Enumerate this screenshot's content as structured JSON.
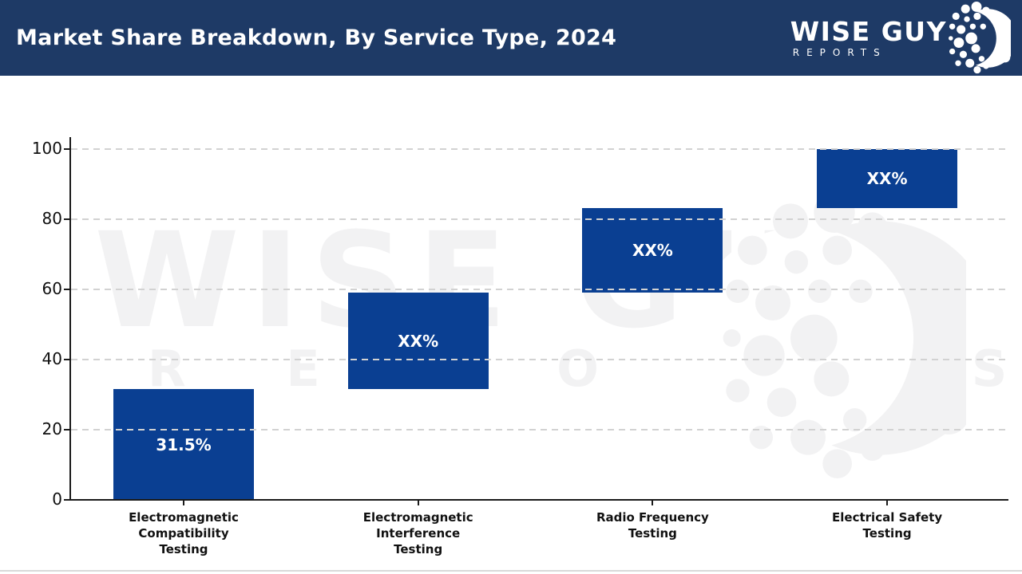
{
  "header": {
    "title": "Market Share Breakdown, By Service Type, 2024",
    "bg_color": "#1E3A66",
    "logo": {
      "wordmark": "WISE GUY",
      "subtitle": "REPORTS"
    }
  },
  "watermark": {
    "wordmark": "WISE GU",
    "subtitle": "R E P O R T S"
  },
  "chart_data": {
    "type": "bar",
    "variant": "waterfall",
    "title": "Market Share Breakdown, By Service Type, 2024",
    "categories": [
      "Electromagnetic Compatibility Testing",
      "Electromagnetic Interference Testing",
      "Radio Frequency Testing",
      "Electrical Safety Testing"
    ],
    "category_lines": [
      [
        "Electromagnetic",
        "Compatibility",
        "Testing"
      ],
      [
        "Electromagnetic",
        "Interference",
        "Testing"
      ],
      [
        "Radio Frequency",
        "Testing"
      ],
      [
        "Electrical Safety",
        "Testing"
      ]
    ],
    "segments": [
      {
        "start": 0,
        "end": 31.5,
        "label": "31.5%"
      },
      {
        "start": 31.5,
        "end": 59,
        "label": "XX%"
      },
      {
        "start": 59,
        "end": 83,
        "label": "XX%"
      },
      {
        "start": 83,
        "end": 100,
        "label": "XX%"
      }
    ],
    "yticks": [
      0,
      20,
      40,
      60,
      80,
      100
    ],
    "ylim": [
      0,
      100
    ],
    "xlabel": "",
    "ylabel": "",
    "grid": "horizontal-dashed",
    "legend": "none",
    "bar_color": "#0A3F92",
    "bar_label_color": "#ffffff"
  }
}
